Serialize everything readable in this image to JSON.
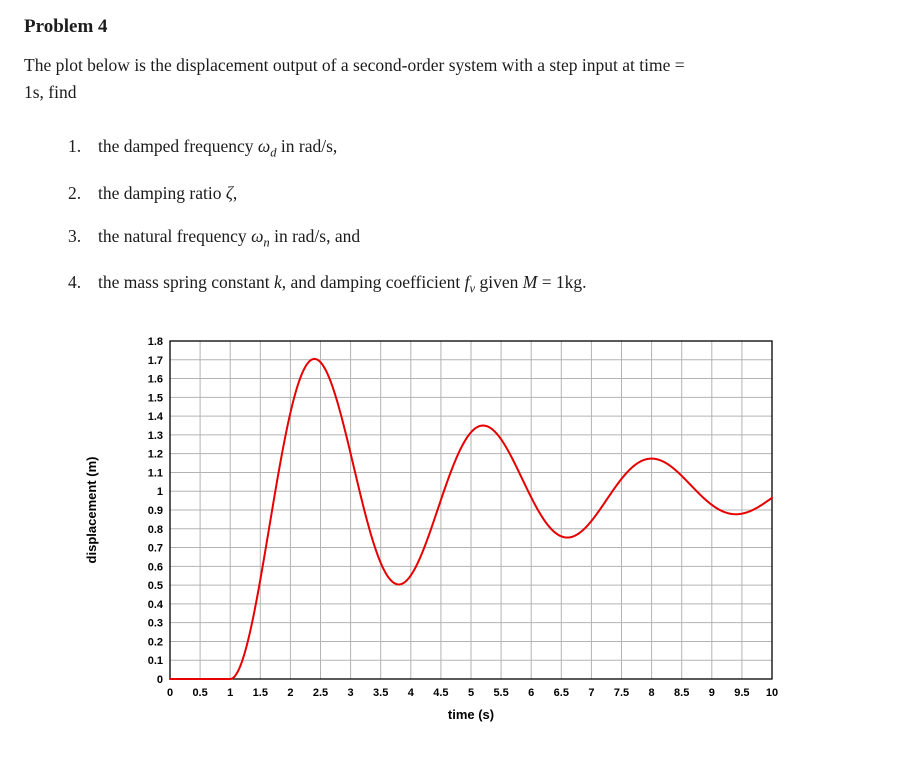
{
  "document": {
    "title": "Problem 4",
    "intro": "The plot below is the displacement output of a second-order system with a step input at time =\n1s, find",
    "items": [
      {
        "label": "1.",
        "html": "the damped frequency <i>ω<sub>d</sub></i> in rad/s,"
      },
      {
        "label": "2.",
        "html": "the damping ratio <i>ζ</i>,"
      },
      {
        "label": "3.",
        "html": "the natural frequency <i>ω<sub>n</sub></i> in rad/s, and"
      },
      {
        "label": "4.",
        "html": "the mass spring constant <i>k</i>, and damping coefficient <i>f<sub>v</sub></i> given <i>M</i> = 1kg."
      }
    ]
  },
  "chart_data": {
    "type": "line",
    "title": "",
    "xlabel": "time (s)",
    "ylabel": "displacement (m)",
    "xlim": [
      0,
      10
    ],
    "ylim": [
      0,
      1.8
    ],
    "xtick_step": 0.5,
    "ytick_step": 0.1,
    "grid": true,
    "legend": "none",
    "line_color": "#e60000",
    "grid_color": "#b3b3b3",
    "axis_color": "#000000",
    "series": [
      {
        "name": "displacement step response",
        "model": {
          "kind": "second_order_underdamped_step",
          "step_time": 1,
          "final_value": 1,
          "sigma": 0.25,
          "omega_d": 2.244
        },
        "key_points": [
          {
            "t": 0.0,
            "y": 0.0,
            "label": "initial rest"
          },
          {
            "t": 1.0,
            "y": 0.0,
            "label": "step applied"
          },
          {
            "t": 2.4,
            "y": 1.7,
            "label": "first peak"
          },
          {
            "t": 3.8,
            "y": 0.53,
            "label": "first trough"
          },
          {
            "t": 5.2,
            "y": 1.34,
            "label": "second peak"
          },
          {
            "t": 6.6,
            "y": 0.77,
            "label": "second trough"
          },
          {
            "t": 8.0,
            "y": 1.17,
            "label": "third peak"
          },
          {
            "t": 9.3,
            "y": 0.88,
            "label": "third trough"
          },
          {
            "t": 10.0,
            "y": 0.96,
            "label": "end of record"
          }
        ]
      }
    ]
  }
}
